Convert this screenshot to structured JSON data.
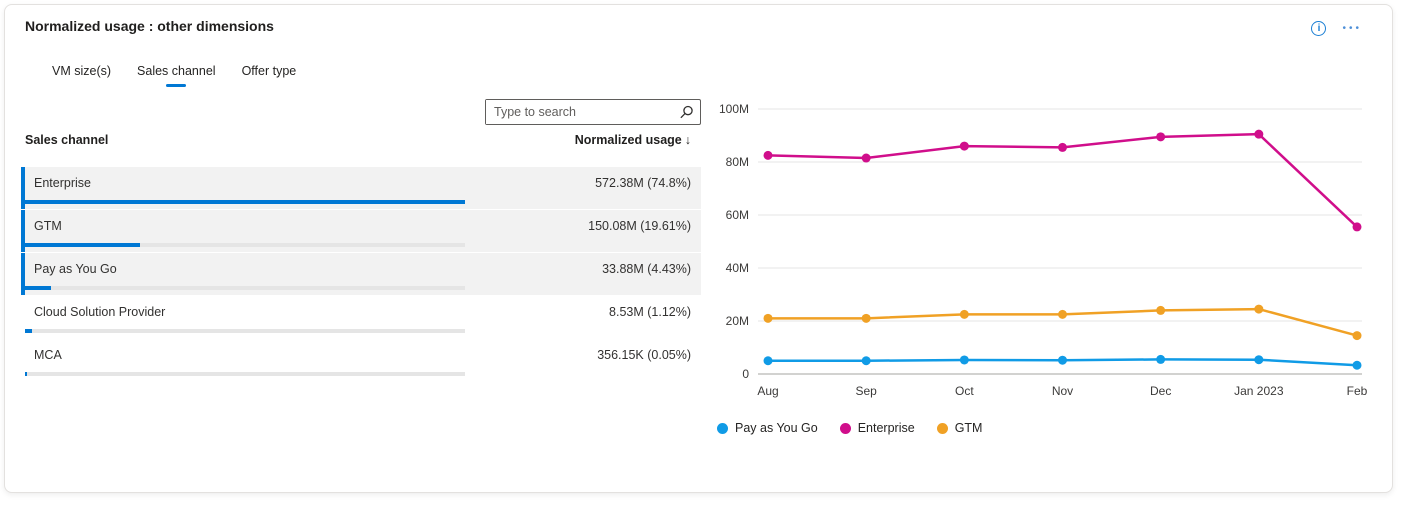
{
  "card": {
    "title": "Normalized usage : other dimensions",
    "icons": {
      "info_glyph": "i",
      "more_glyph": "•••"
    }
  },
  "tabs": [
    {
      "label": "VM size(s)",
      "active": false
    },
    {
      "label": "Sales channel",
      "active": true
    },
    {
      "label": "Offer type",
      "active": false
    }
  ],
  "search": {
    "placeholder": "Type to search"
  },
  "table": {
    "columns": [
      {
        "label": "Sales channel"
      },
      {
        "label": "Normalized usage",
        "sort": "↓"
      }
    ],
    "rows": [
      {
        "label": "Enterprise",
        "value": "572.38M (74.8%)",
        "bar_pct": 100,
        "selected": true
      },
      {
        "label": "GTM",
        "value": "150.08M (19.61%)",
        "bar_pct": 26.2,
        "selected": true
      },
      {
        "label": "Pay as You Go",
        "value": "33.88M (4.43%)",
        "bar_pct": 5.9,
        "selected": true
      },
      {
        "label": "Cloud Solution Provider",
        "value": "8.53M (1.12%)",
        "bar_pct": 1.5,
        "selected": false
      },
      {
        "label": "MCA",
        "value": "356.15K (0.05%)",
        "bar_pct": 0.5,
        "selected": false
      }
    ]
  },
  "chart_data": {
    "type": "line",
    "title": "",
    "categories": [
      "Aug",
      "Sep",
      "Oct",
      "Nov",
      "Dec",
      "Jan 2023",
      "Feb"
    ],
    "series": [
      {
        "name": "Pay as You Go",
        "color": "#109be6",
        "values": [
          5,
          5,
          5.3,
          5.2,
          5.5,
          5.4,
          3.3
        ]
      },
      {
        "name": "Enterprise",
        "color": "#d00e8b",
        "values": [
          82.5,
          81.5,
          86,
          85.5,
          89.5,
          90.5,
          55.5
        ]
      },
      {
        "name": "GTM",
        "color": "#f0a125",
        "values": [
          21,
          21,
          22.5,
          22.5,
          24,
          24.5,
          14.5
        ]
      }
    ],
    "ylim": [
      0,
      100
    ],
    "y_tick_values": [
      0,
      20,
      40,
      60,
      80,
      100
    ],
    "y_tick_labels": [
      "0",
      "20M",
      "40M",
      "60M",
      "80M",
      "100M"
    ],
    "grid": true,
    "legend_position": "bottom"
  },
  "colors": {
    "accent": "#0078d4",
    "grid_line": "#e6e6e6",
    "zero_line": "#a6a4a2",
    "axis_text": "#3b3a39",
    "selected_row_bg": "#f2f2f2"
  }
}
